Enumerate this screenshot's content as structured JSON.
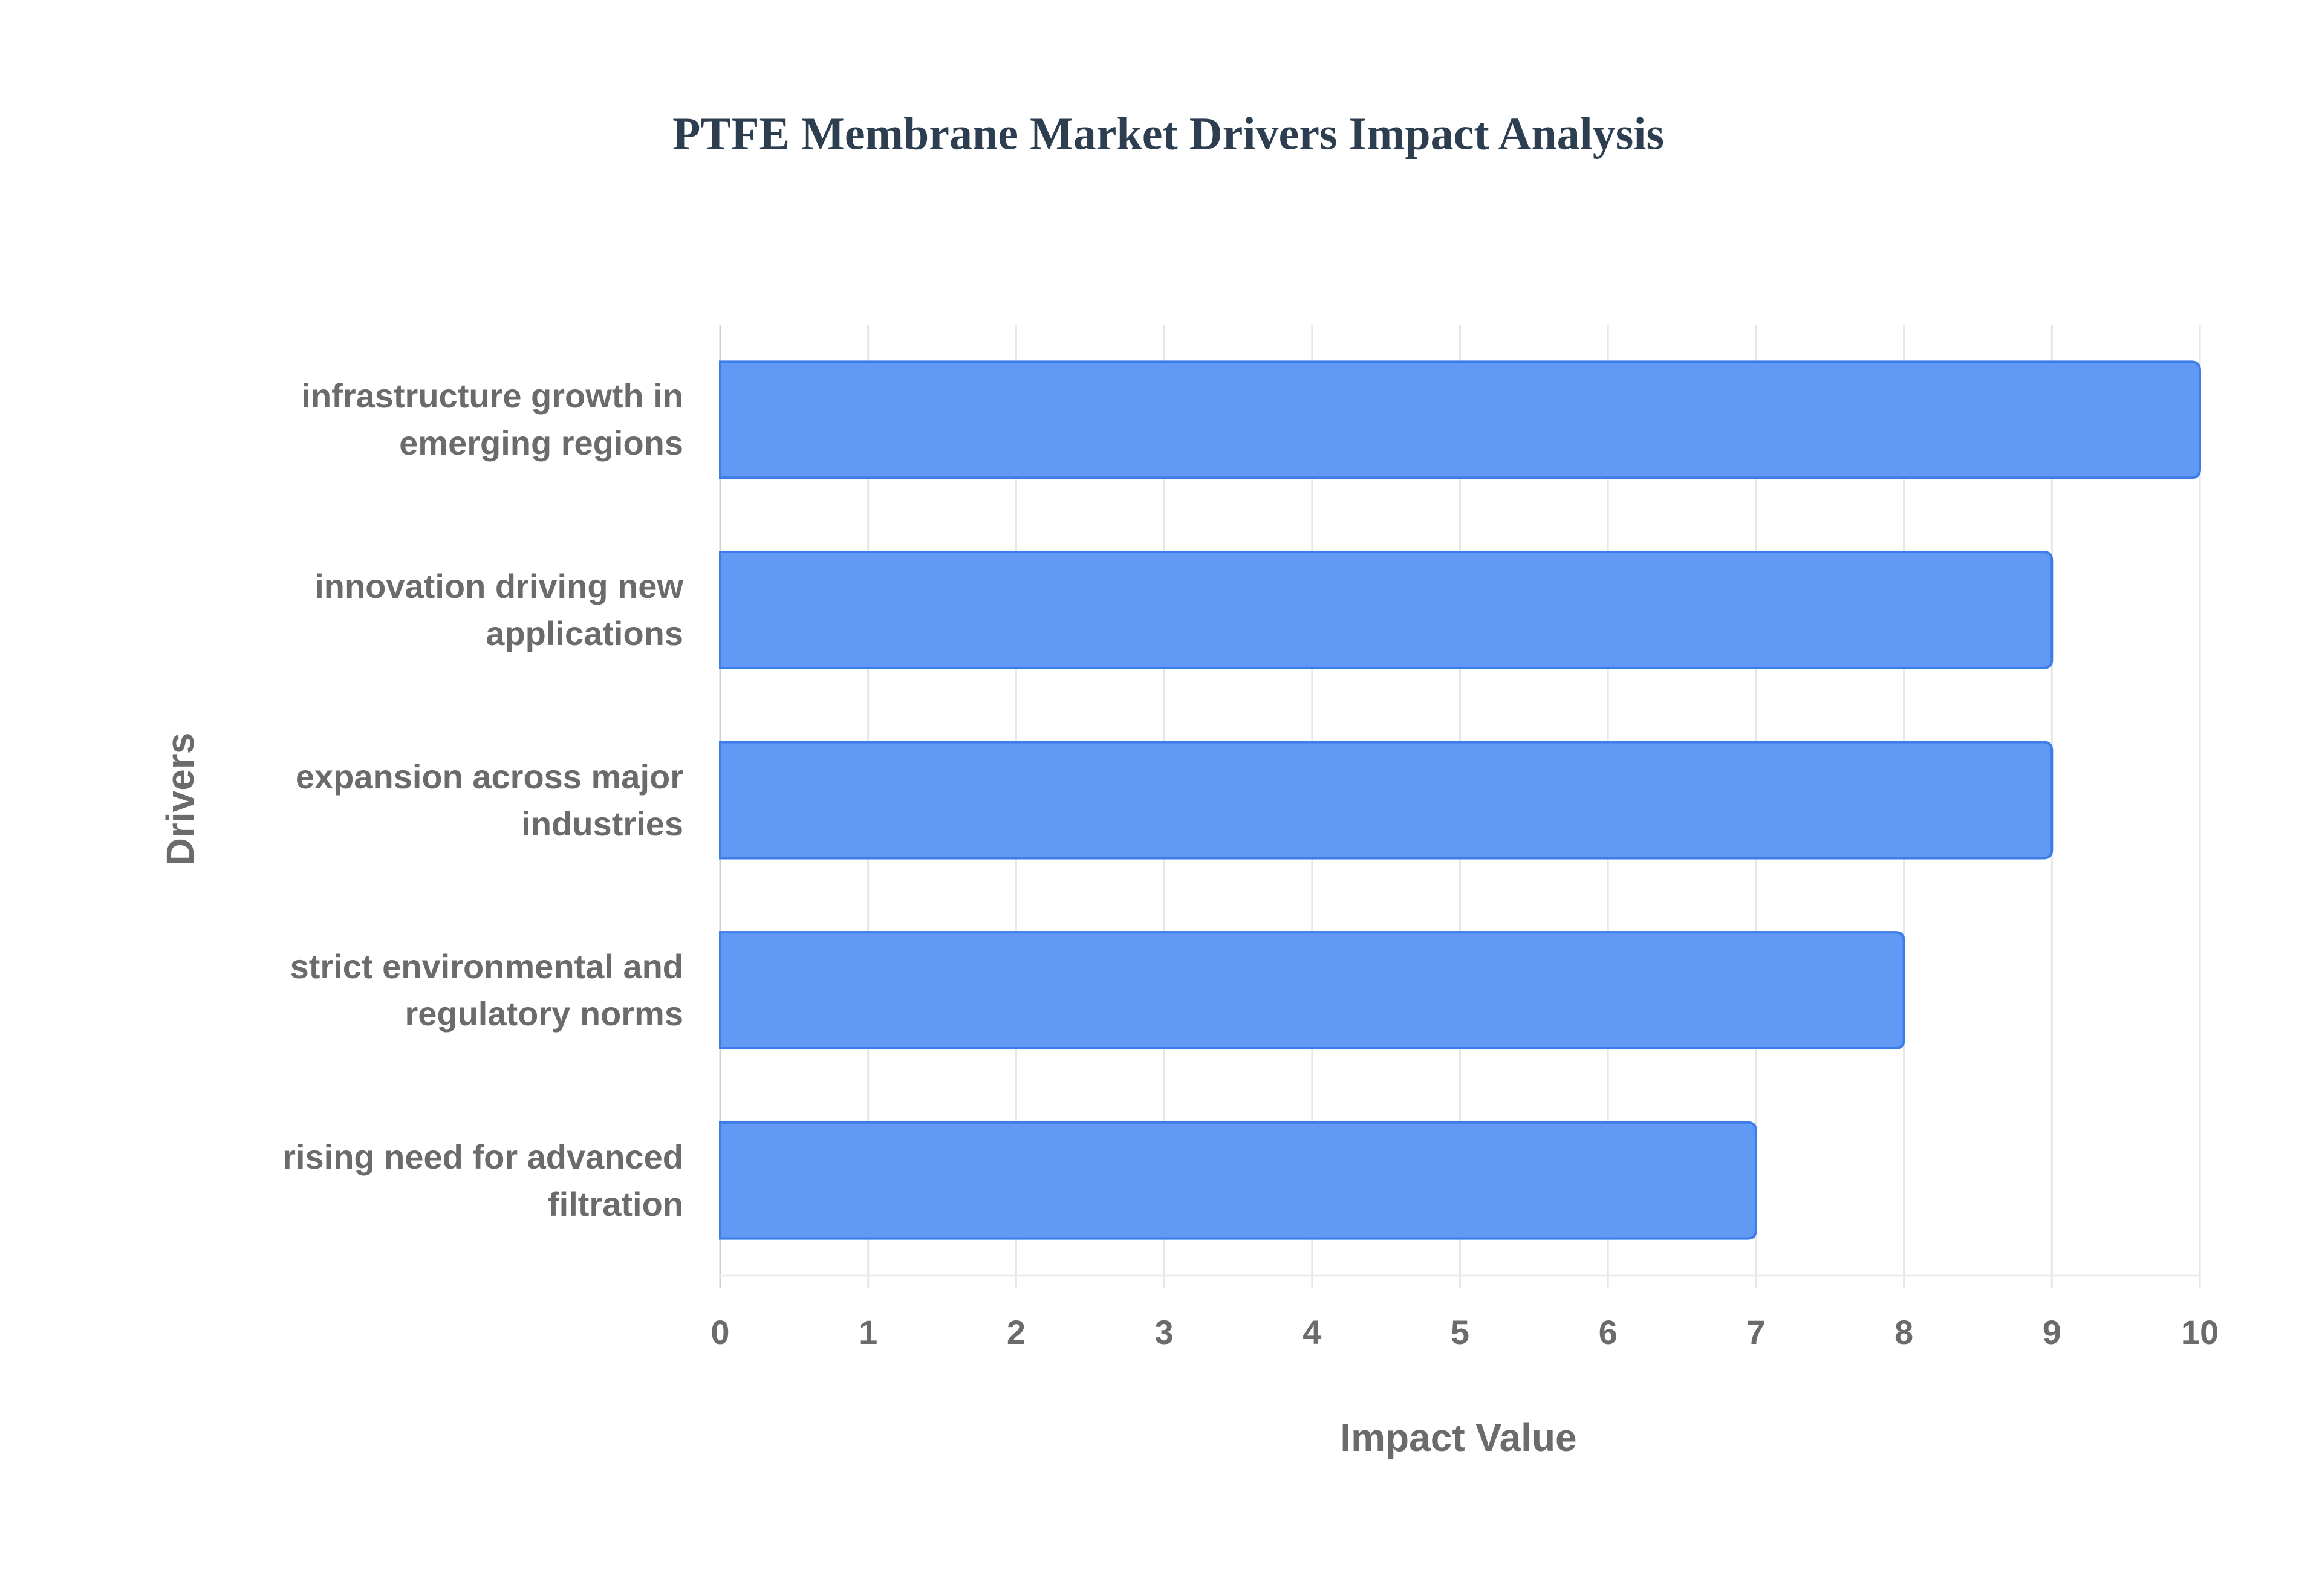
{
  "chart_data": {
    "type": "bar",
    "orientation": "horizontal",
    "title": "PTFE Membrane Market Drivers Impact Analysis",
    "x_label": "Impact Value",
    "y_label": "Drivers",
    "categories": [
      "infrastructure growth in emerging regions",
      "innovation driving new applications",
      "expansion across major industries",
      "strict environmental and regulatory norms",
      "rising need for advanced filtration"
    ],
    "values": [
      10,
      9,
      9,
      8,
      7
    ],
    "color": "#6199f4",
    "xlim": [
      0,
      10
    ],
    "xticks": [
      0,
      1,
      2,
      3,
      4,
      5,
      6,
      7,
      8,
      9,
      10
    ],
    "grid": true
  }
}
